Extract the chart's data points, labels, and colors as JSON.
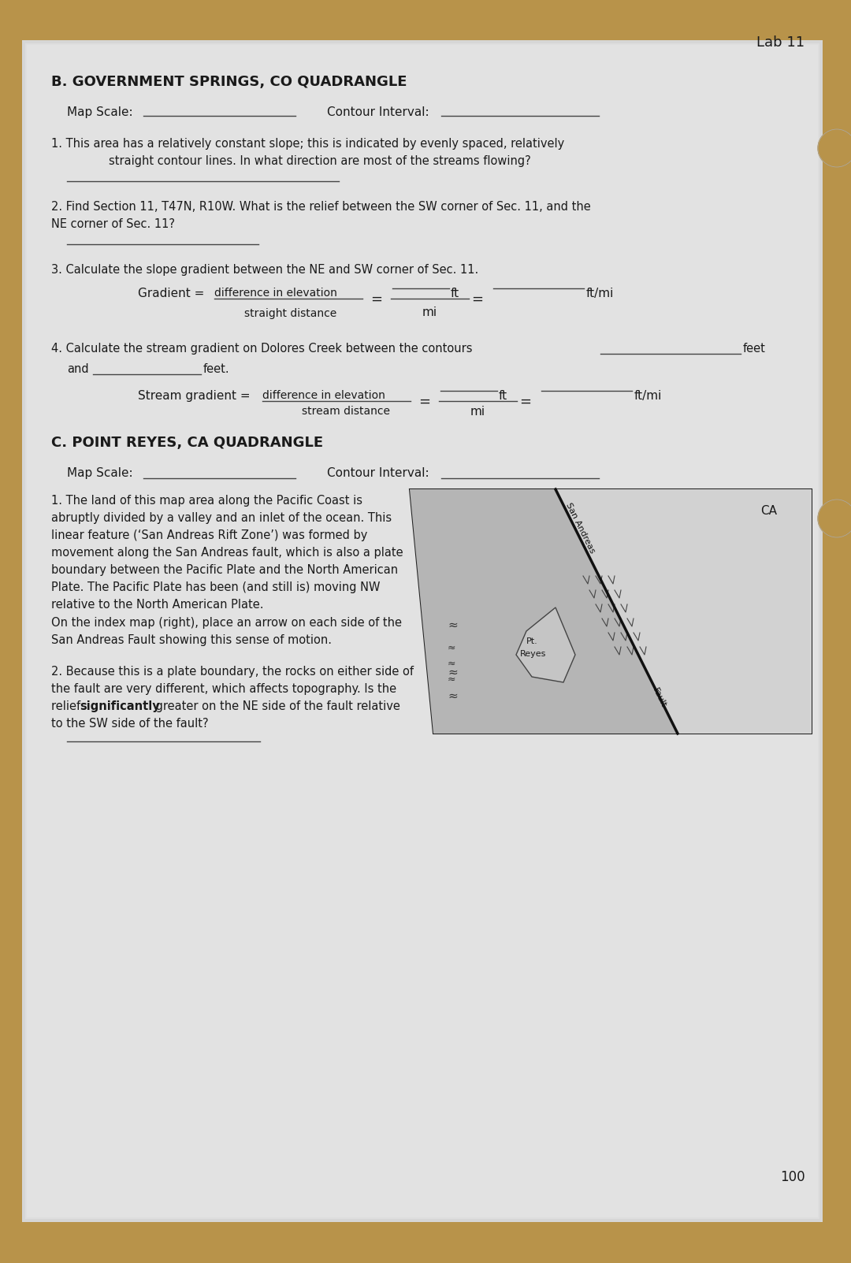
{
  "page_bg": "#b8934a",
  "paper_bg": "#e0e0e0",
  "text_color": "#1a1a1a",
  "lab_label": "Lab 11",
  "section_b_title": "B. GOVERNMENT SPRINGS, CO QUADRANGLE",
  "map_scale_label": "Map Scale:",
  "contour_interval_label": "Contour Interval:",
  "q1_b_line1": "1. This area has a relatively constant slope; this is indicated by evenly spaced, relatively",
  "q1_b_line2": "straight contour lines. In what direction are most of the streams flowing?",
  "q2_b_line1": "2. Find Section 11, T47N, R10W. What is the relief between the SW corner of Sec. 11, and the",
  "q2_b_line2": "NE corner of Sec. 11?",
  "q3_b": "3. Calculate the slope gradient between the NE and SW corner of Sec. 11.",
  "gradient_label": "Gradient = ",
  "gradient_num": "difference in elevation",
  "gradient_den": "straight distance",
  "ft_label": "ft",
  "mi_label": "mi",
  "ftmi_label": "ft/mi",
  "q4_b_line1": "4. Calculate the stream gradient on Dolores Creek between the contours",
  "feet_label": "feet",
  "q4_b_and": "and",
  "q4_b_feet": "feet.",
  "stream_gradient_label": "Stream gradient = ",
  "stream_grad_num": "difference in elevation",
  "stream_grad_den": "stream distance",
  "section_c_title": "C. POINT REYES, CA QUADRANGLE",
  "q1_c_lines": [
    "1. The land of this map area along the Pacific Coast is",
    "abruptly divided by a valley and an inlet of the ocean. This",
    "linear feature (‘San Andreas Rift Zone’) was formed by",
    "movement along the San Andreas fault, which is also a plate",
    "boundary between the Pacific Plate and the North American",
    "Plate. The Pacific Plate has been (and still is) moving NW",
    "relative to the North American Plate."
  ],
  "q1_c2_line1": "On the index map (right), place an arrow on each side of the",
  "q1_c2_line2": "San Andreas Fault showing this sense of motion.",
  "q2_c_line1": "2. Because this is a plate boundary, the rocks on either side of",
  "q2_c_line2": "the fault are very different, which affects topography. Is the",
  "q2_c_line3_pre": "relief ",
  "q2_c_bold": "significantly",
  "q2_c_line3_post": " greater on the NE side of the fault relative",
  "q2_c_line4": "to the SW side of the fault?",
  "page_num": "100",
  "san_andreas_label": "San Andreas",
  "fault_label": "Fault",
  "ca_label": "CA",
  "pt_reyes_label1": "Pt.",
  "pt_reyes_label2": "Reyes"
}
